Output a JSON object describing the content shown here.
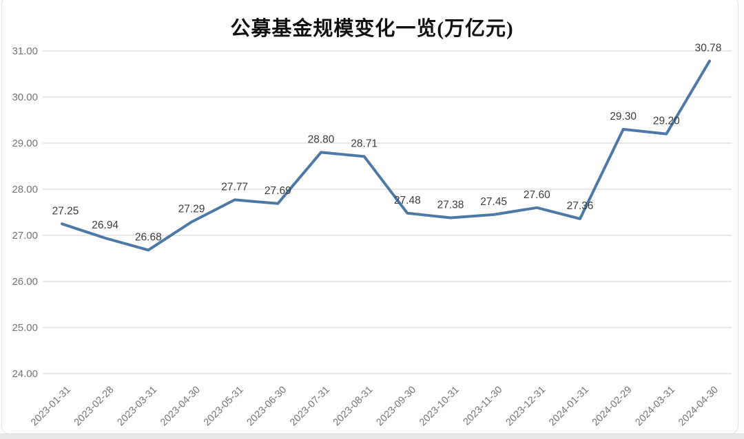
{
  "title": "公募基金规模变化一览(万亿元)",
  "chart_data": {
    "type": "line",
    "title": "公募基金规模变化一览(万亿元)",
    "categories": [
      "2023-01-31",
      "2023-02-28",
      "2023-03-31",
      "2023-04-30",
      "2023-05-31",
      "2023-06-30",
      "2023-07-31",
      "2023-08-31",
      "2023-09-30",
      "2023-10-31",
      "2023-11-30",
      "2023-12-31",
      "2024-01-31",
      "2024-02-29",
      "2024-03-31",
      "2024-04-30"
    ],
    "values": [
      27.25,
      26.94,
      26.68,
      27.29,
      27.77,
      27.69,
      28.8,
      28.71,
      27.48,
      27.38,
      27.45,
      27.6,
      27.36,
      29.3,
      29.2,
      30.78
    ],
    "point_labels": [
      "27.25",
      "26.94",
      "26.68",
      "27.29",
      "27.77",
      "27.69",
      "28.80",
      "28.71",
      "27.48",
      "27.38",
      "27.45",
      "27.60",
      "27.36",
      "29.30",
      "29.20",
      "30.78"
    ],
    "xlabel": "",
    "ylabel": "",
    "ylim": [
      24,
      31
    ],
    "y_ticks": [
      {
        "value": 31,
        "label": "31.00"
      },
      {
        "value": 30,
        "label": "30.00"
      },
      {
        "value": 29,
        "label": "29.00"
      },
      {
        "value": 28,
        "label": "28.00"
      },
      {
        "value": 27,
        "label": "27.00"
      },
      {
        "value": 26,
        "label": "26.00"
      },
      {
        "value": 25,
        "label": "25.00"
      },
      {
        "value": 24,
        "label": "24.00"
      }
    ],
    "grid": true,
    "legend": "none",
    "x_tick_rotation_deg": -45,
    "colors": {
      "line": "#4e79a7",
      "grid": "#d9d9d9",
      "tick_label": "#757575",
      "point_label": "#3d3d3d",
      "title": "#111111"
    }
  }
}
